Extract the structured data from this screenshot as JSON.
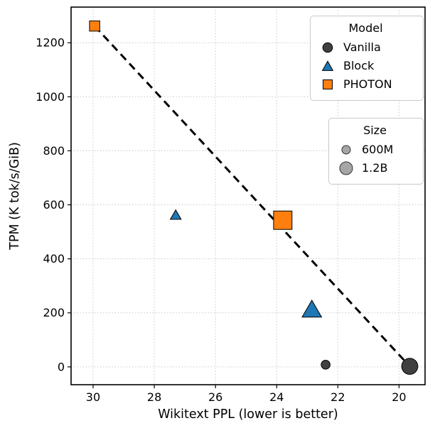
{
  "chart_data": {
    "type": "scatter",
    "title": "",
    "xlabel": "Wikitext PPL (lower is better)",
    "ylabel": "TPM (K tok/s/GiB)",
    "xlim": [
      30.72,
      19.15
    ],
    "ylim": [
      -66,
      1332
    ],
    "x_inverted": true,
    "x_ticks": [
      30,
      28,
      26,
      24,
      22,
      20
    ],
    "y_ticks": [
      0,
      200,
      400,
      600,
      800,
      1000,
      1200
    ],
    "grid": "dotted",
    "grid_color": "#c9c9c9",
    "size_scale": {
      "600M": 1,
      "1.2B": 1.8
    },
    "series": [
      {
        "name": "Vanilla",
        "marker": "circle",
        "color": "#404040",
        "points": [
          {
            "x": 22.4,
            "y": 8,
            "size": "600M"
          },
          {
            "x": 19.65,
            "y": 2,
            "size": "1.2B"
          }
        ]
      },
      {
        "name": "Block",
        "marker": "triangle",
        "color": "#1f77b4",
        "points": [
          {
            "x": 27.3,
            "y": 558,
            "size": "600M"
          },
          {
            "x": 22.85,
            "y": 205,
            "size": "1.2B"
          }
        ]
      },
      {
        "name": "PHOTON",
        "marker": "square",
        "color": "#ff7f0e",
        "points": [
          {
            "x": 29.95,
            "y": 1262,
            "size": "600M"
          },
          {
            "x": 23.8,
            "y": 543,
            "size": "1.2B"
          }
        ]
      }
    ],
    "trend_line": {
      "style": "dashed",
      "color": "#000000",
      "width": 3,
      "from": {
        "x": 29.95,
        "y": 1262
      },
      "to": {
        "x": 19.65,
        "y": 2
      }
    },
    "legends": [
      {
        "title": "Model",
        "entries": [
          {
            "label": "Vanilla",
            "marker": "circle",
            "color": "#404040"
          },
          {
            "label": "Block",
            "marker": "triangle",
            "color": "#1f77b4"
          },
          {
            "label": "PHOTON",
            "marker": "square",
            "color": "#ff7f0e"
          }
        ]
      },
      {
        "title": "Size",
        "entries": [
          {
            "label": "600M",
            "marker": "circle-small",
            "color": "#a6a6a6"
          },
          {
            "label": "1.2B",
            "marker": "circle-large",
            "color": "#a6a6a6"
          }
        ]
      }
    ]
  }
}
